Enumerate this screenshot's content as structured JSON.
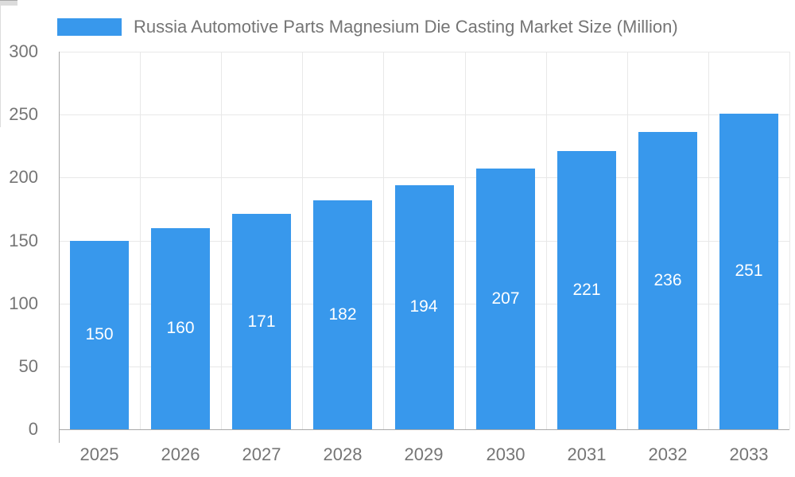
{
  "legend": {
    "label": "Russia Automotive Parts Magnesium Die Casting Market Size (Million)"
  },
  "colors": {
    "bar": "#3898EC",
    "axis": "#a8a8a8",
    "grid": "#e8e8e8",
    "tick": "#dcdcdc",
    "label_text": "#757575",
    "value_text": "#ffffff",
    "background": "#ffffff"
  },
  "chart_data": {
    "type": "bar",
    "title": "Russia Automotive Parts Magnesium Die Casting Market Size (Million)",
    "categories": [
      "2025",
      "2026",
      "2027",
      "2028",
      "2029",
      "2030",
      "2031",
      "2032",
      "2033"
    ],
    "values": [
      150,
      160,
      171,
      182,
      194,
      207,
      221,
      236,
      251
    ],
    "xlabel": "",
    "ylabel": "",
    "ylim": [
      0,
      300
    ],
    "yticks": [
      0,
      50,
      100,
      150,
      200,
      250,
      300
    ],
    "grid": true,
    "legend_position": "top-left",
    "value_labels": "inside-middle"
  }
}
